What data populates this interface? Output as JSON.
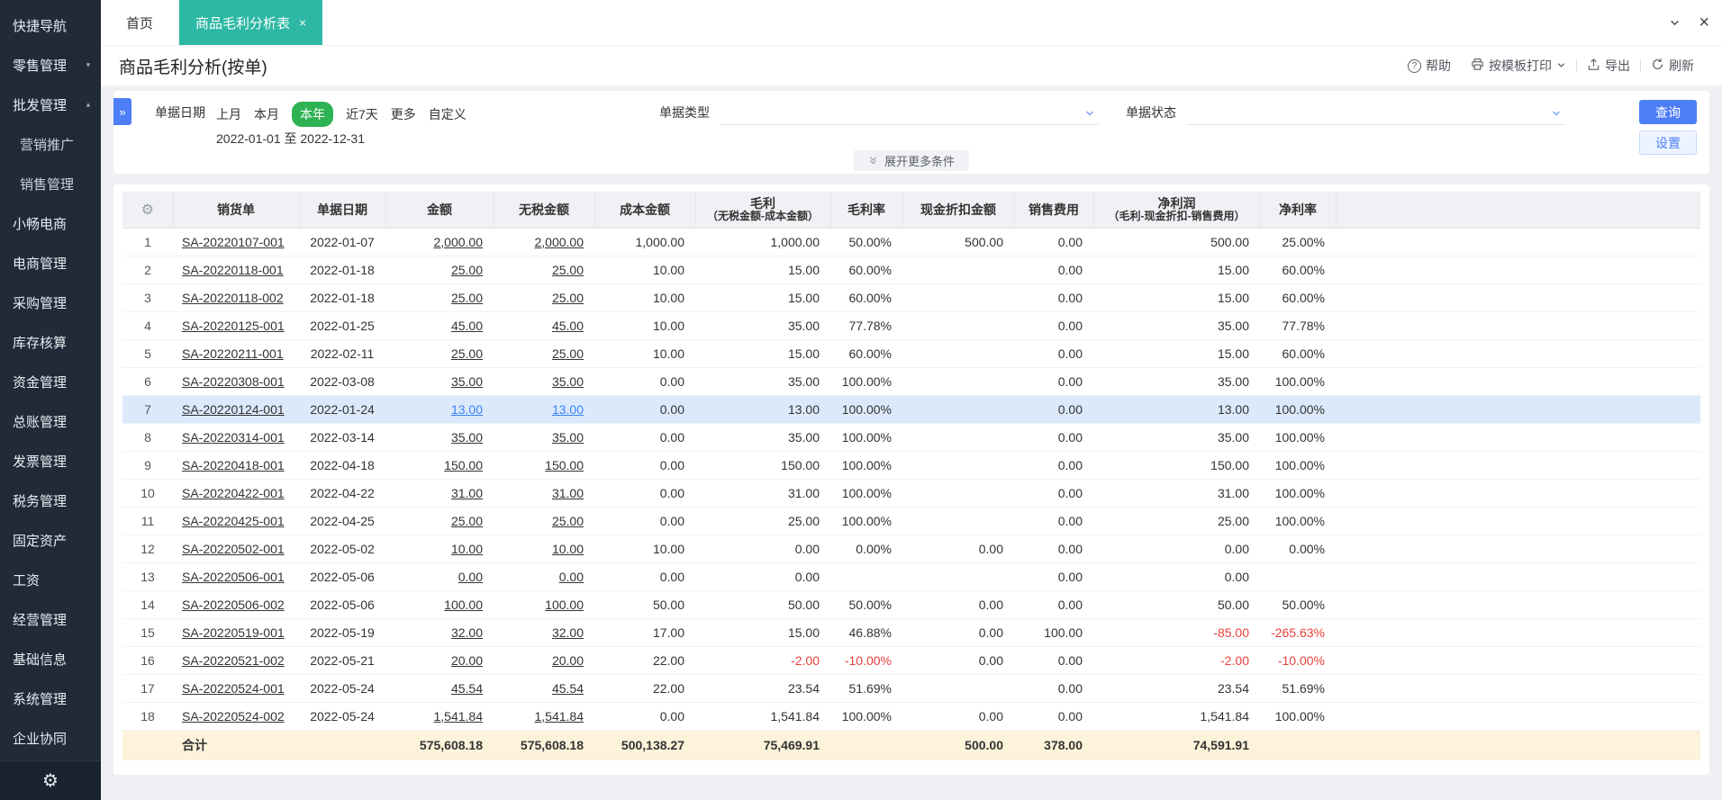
{
  "icons": {
    "gear": "⚙",
    "close": "×",
    "double_right": "»"
  },
  "colors": {
    "sidebar_bg": "#202a38",
    "active_tab_teal": "#2cb8a4",
    "accent_blue": "#4d7ef7",
    "quick_selected_green": "#2eb354",
    "selected_row_blue": "#dce9fb",
    "negative_red": "#e8413c",
    "total_row_bg": "#fcf3da"
  },
  "tabs": {
    "home": "首页",
    "active": "商品毛利分析表"
  },
  "page": {
    "title": "商品毛利分析(按单)",
    "actions": {
      "help": "帮助",
      "print": "按模板打印",
      "export": "导出",
      "refresh": "刷新"
    }
  },
  "sidebar": {
    "items": [
      {
        "label": "快捷导航"
      },
      {
        "label": "零售管理",
        "arrow": "down"
      },
      {
        "label": "批发管理",
        "arrow": "up"
      },
      {
        "label": "营销推广",
        "sub": true
      },
      {
        "label": "销售管理",
        "sub": true
      },
      {
        "label": "小畅电商"
      },
      {
        "label": "电商管理"
      },
      {
        "label": "采购管理"
      },
      {
        "label": "库存核算"
      },
      {
        "label": "资金管理"
      },
      {
        "label": "总账管理"
      },
      {
        "label": "发票管理"
      },
      {
        "label": "税务管理"
      },
      {
        "label": "固定资产"
      },
      {
        "label": "工资"
      },
      {
        "label": "经营管理"
      },
      {
        "label": "基础信息"
      },
      {
        "label": "系统管理"
      },
      {
        "label": "企业协同"
      }
    ]
  },
  "filters": {
    "date_label": "单据日期",
    "quick_options": [
      "上月",
      "本月",
      "本年",
      "近7天",
      "更多",
      "自定义"
    ],
    "quick_selected": "本年",
    "date_range": "2022-01-01 至 2022-12-31",
    "doc_type_label": "单据类型",
    "doc_status_label": "单据状态",
    "query_button": "查询",
    "settings_button": "设置",
    "expand_more": "展开更多条件"
  },
  "table": {
    "columns": [
      {
        "label": "销货单"
      },
      {
        "label": "单据日期"
      },
      {
        "label": "金额"
      },
      {
        "label": "无税金额"
      },
      {
        "label": "成本金额"
      },
      {
        "label": "毛利",
        "sub": "（无税金额-成本金额）"
      },
      {
        "label": "毛利率"
      },
      {
        "label": "现金折扣金额"
      },
      {
        "label": "销售费用"
      },
      {
        "label": "净利润",
        "sub": "（毛利-现金折扣-销售费用）"
      },
      {
        "label": "净利率"
      }
    ],
    "rows": [
      {
        "num": "1",
        "order": "SA-20220107-001",
        "date": "2022-01-07",
        "amount": "2,000.00",
        "tax_free": "2,000.00",
        "cost": "1,000.00",
        "gross": "1,000.00",
        "gross_rate": "50.00%",
        "cash_discount": "500.00",
        "expense": "0.00",
        "net": "500.00",
        "net_rate": "25.00%"
      },
      {
        "num": "2",
        "order": "SA-20220118-001",
        "date": "2022-01-18",
        "amount": "25.00",
        "tax_free": "25.00",
        "cost": "10.00",
        "gross": "15.00",
        "gross_rate": "60.00%",
        "cash_discount": "",
        "expense": "0.00",
        "net": "15.00",
        "net_rate": "60.00%"
      },
      {
        "num": "3",
        "order": "SA-20220118-002",
        "date": "2022-01-18",
        "amount": "25.00",
        "tax_free": "25.00",
        "cost": "10.00",
        "gross": "15.00",
        "gross_rate": "60.00%",
        "cash_discount": "",
        "expense": "0.00",
        "net": "15.00",
        "net_rate": "60.00%"
      },
      {
        "num": "4",
        "order": "SA-20220125-001",
        "date": "2022-01-25",
        "amount": "45.00",
        "tax_free": "45.00",
        "cost": "10.00",
        "gross": "35.00",
        "gross_rate": "77.78%",
        "cash_discount": "",
        "expense": "0.00",
        "net": "35.00",
        "net_rate": "77.78%"
      },
      {
        "num": "5",
        "order": "SA-20220211-001",
        "date": "2022-02-11",
        "amount": "25.00",
        "tax_free": "25.00",
        "cost": "10.00",
        "gross": "15.00",
        "gross_rate": "60.00%",
        "cash_discount": "",
        "expense": "0.00",
        "net": "15.00",
        "net_rate": "60.00%"
      },
      {
        "num": "6",
        "order": "SA-20220308-001",
        "date": "2022-03-08",
        "amount": "35.00",
        "tax_free": "35.00",
        "cost": "0.00",
        "gross": "35.00",
        "gross_rate": "100.00%",
        "cash_discount": "",
        "expense": "0.00",
        "net": "35.00",
        "net_rate": "100.00%"
      },
      {
        "num": "7",
        "order": "SA-20220124-001",
        "date": "2022-01-24",
        "amount": "13.00",
        "tax_free": "13.00",
        "cost": "0.00",
        "gross": "13.00",
        "gross_rate": "100.00%",
        "cash_discount": "",
        "expense": "0.00",
        "net": "13.00",
        "net_rate": "100.00%",
        "selected": true
      },
      {
        "num": "8",
        "order": "SA-20220314-001",
        "date": "2022-03-14",
        "amount": "35.00",
        "tax_free": "35.00",
        "cost": "0.00",
        "gross": "35.00",
        "gross_rate": "100.00%",
        "cash_discount": "",
        "expense": "0.00",
        "net": "35.00",
        "net_rate": "100.00%"
      },
      {
        "num": "9",
        "order": "SA-20220418-001",
        "date": "2022-04-18",
        "amount": "150.00",
        "tax_free": "150.00",
        "cost": "0.00",
        "gross": "150.00",
        "gross_rate": "100.00%",
        "cash_discount": "",
        "expense": "0.00",
        "net": "150.00",
        "net_rate": "100.00%"
      },
      {
        "num": "10",
        "order": "SA-20220422-001",
        "date": "2022-04-22",
        "amount": "31.00",
        "tax_free": "31.00",
        "cost": "0.00",
        "gross": "31.00",
        "gross_rate": "100.00%",
        "cash_discount": "",
        "expense": "0.00",
        "net": "31.00",
        "net_rate": "100.00%"
      },
      {
        "num": "11",
        "order": "SA-20220425-001",
        "date": "2022-04-25",
        "amount": "25.00",
        "tax_free": "25.00",
        "cost": "0.00",
        "gross": "25.00",
        "gross_rate": "100.00%",
        "cash_discount": "",
        "expense": "0.00",
        "net": "25.00",
        "net_rate": "100.00%"
      },
      {
        "num": "12",
        "order": "SA-20220502-001",
        "date": "2022-05-02",
        "amount": "10.00",
        "tax_free": "10.00",
        "cost": "10.00",
        "gross": "0.00",
        "gross_rate": "0.00%",
        "cash_discount": "0.00",
        "expense": "0.00",
        "net": "0.00",
        "net_rate": "0.00%"
      },
      {
        "num": "13",
        "order": "SA-20220506-001",
        "date": "2022-05-06",
        "amount": "0.00",
        "tax_free": "0.00",
        "cost": "0.00",
        "gross": "0.00",
        "gross_rate": "",
        "cash_discount": "",
        "expense": "0.00",
        "net": "0.00",
        "net_rate": ""
      },
      {
        "num": "14",
        "order": "SA-20220506-002",
        "date": "2022-05-06",
        "amount": "100.00",
        "tax_free": "100.00",
        "cost": "50.00",
        "gross": "50.00",
        "gross_rate": "50.00%",
        "cash_discount": "0.00",
        "expense": "0.00",
        "net": "50.00",
        "net_rate": "50.00%"
      },
      {
        "num": "15",
        "order": "SA-20220519-001",
        "date": "2022-05-19",
        "amount": "32.00",
        "tax_free": "32.00",
        "cost": "17.00",
        "gross": "15.00",
        "gross_rate": "46.88%",
        "cash_discount": "0.00",
        "expense": "100.00",
        "net": "-85.00",
        "net_rate": "-265.63%"
      },
      {
        "num": "16",
        "order": "SA-20220521-002",
        "date": "2022-05-21",
        "amount": "20.00",
        "tax_free": "20.00",
        "cost": "22.00",
        "gross": "-2.00",
        "gross_rate": "-10.00%",
        "cash_discount": "0.00",
        "expense": "0.00",
        "net": "-2.00",
        "net_rate": "-10.00%"
      },
      {
        "num": "17",
        "order": "SA-20220524-001",
        "date": "2022-05-24",
        "amount": "45.54",
        "tax_free": "45.54",
        "cost": "22.00",
        "gross": "23.54",
        "gross_rate": "51.69%",
        "cash_discount": "",
        "expense": "0.00",
        "net": "23.54",
        "net_rate": "51.69%"
      },
      {
        "num": "18",
        "order": "SA-20220524-002",
        "date": "2022-05-24",
        "amount": "1,541.84",
        "tax_free": "1,541.84",
        "cost": "0.00",
        "gross": "1,541.84",
        "gross_rate": "100.00%",
        "cash_discount": "0.00",
        "expense": "0.00",
        "net": "1,541.84",
        "net_rate": "100.00%"
      }
    ],
    "total": {
      "label": "合计",
      "amount": "575,608.18",
      "tax_free": "575,608.18",
      "cost": "500,138.27",
      "gross": "75,469.91",
      "gross_rate": "",
      "cash_discount": "500.00",
      "expense": "378.00",
      "net": "74,591.91",
      "net_rate": ""
    }
  }
}
